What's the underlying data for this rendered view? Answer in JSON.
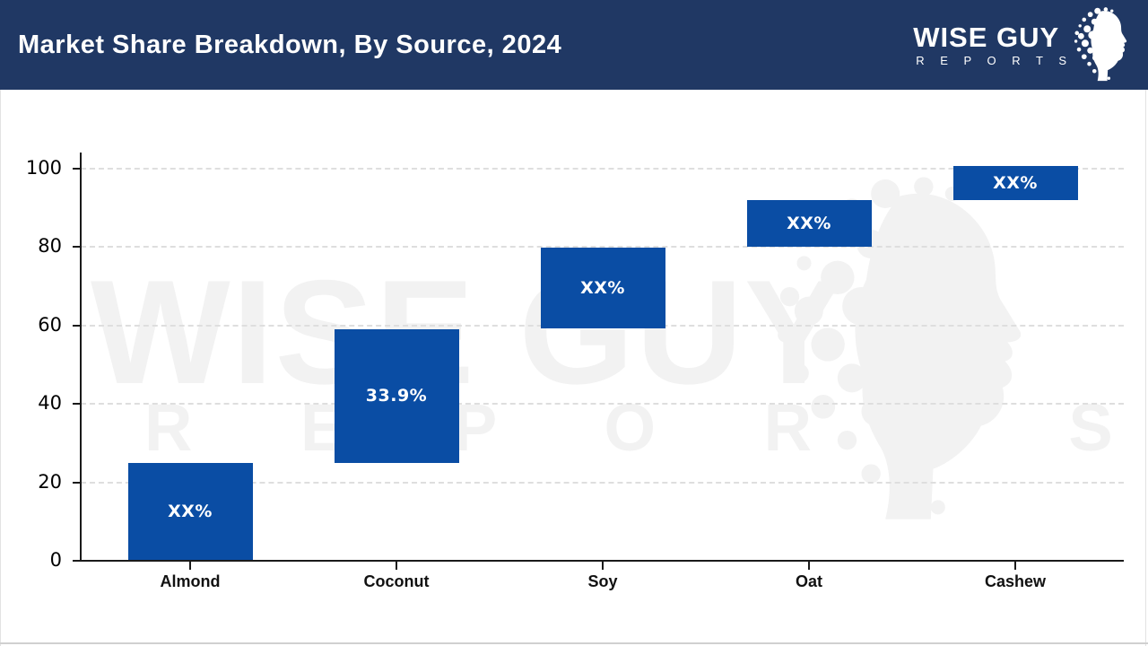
{
  "header": {
    "title": "Market Share Breakdown, By Source, 2024",
    "logo": {
      "line1": "WISE GUY",
      "line2": "R E P O R T S",
      "icon": "dotted-head-profile-icon"
    }
  },
  "watermark": {
    "line1": "WISE GUY",
    "line2": "R E P O R T S",
    "icon": "dotted-head-profile-icon"
  },
  "colors": {
    "header_bg": "#203864",
    "bar": "#0a4da4",
    "bar_label": "#ffffff",
    "gridline": "#dedede",
    "axis": "#1a1a1a",
    "watermark": "#f2f2f2"
  },
  "chart_data": {
    "type": "bar",
    "subtype": "waterfall",
    "title": "Market Share Breakdown, By Source, 2024",
    "categories": [
      "Almond",
      "Coconut",
      "Soy",
      "Oat",
      "Cashew"
    ],
    "bars": [
      {
        "category": "Almond",
        "start": 0,
        "end": 25,
        "label": "XX%"
      },
      {
        "category": "Coconut",
        "start": 25,
        "end": 58.9,
        "label": "33.9%"
      },
      {
        "category": "Soy",
        "start": 59.3,
        "end": 79.7,
        "label": "XX%"
      },
      {
        "category": "Oat",
        "start": 80.1,
        "end": 92,
        "label": "XX%"
      },
      {
        "category": "Cashew",
        "start": 92,
        "end": 100.5,
        "label": "XX%"
      }
    ],
    "yticks": [
      0,
      20,
      40,
      60,
      80,
      100
    ],
    "ylim": [
      0,
      104
    ],
    "xlabel": "",
    "ylabel": "",
    "grid": "horizontal-dashed",
    "legend": "none"
  }
}
